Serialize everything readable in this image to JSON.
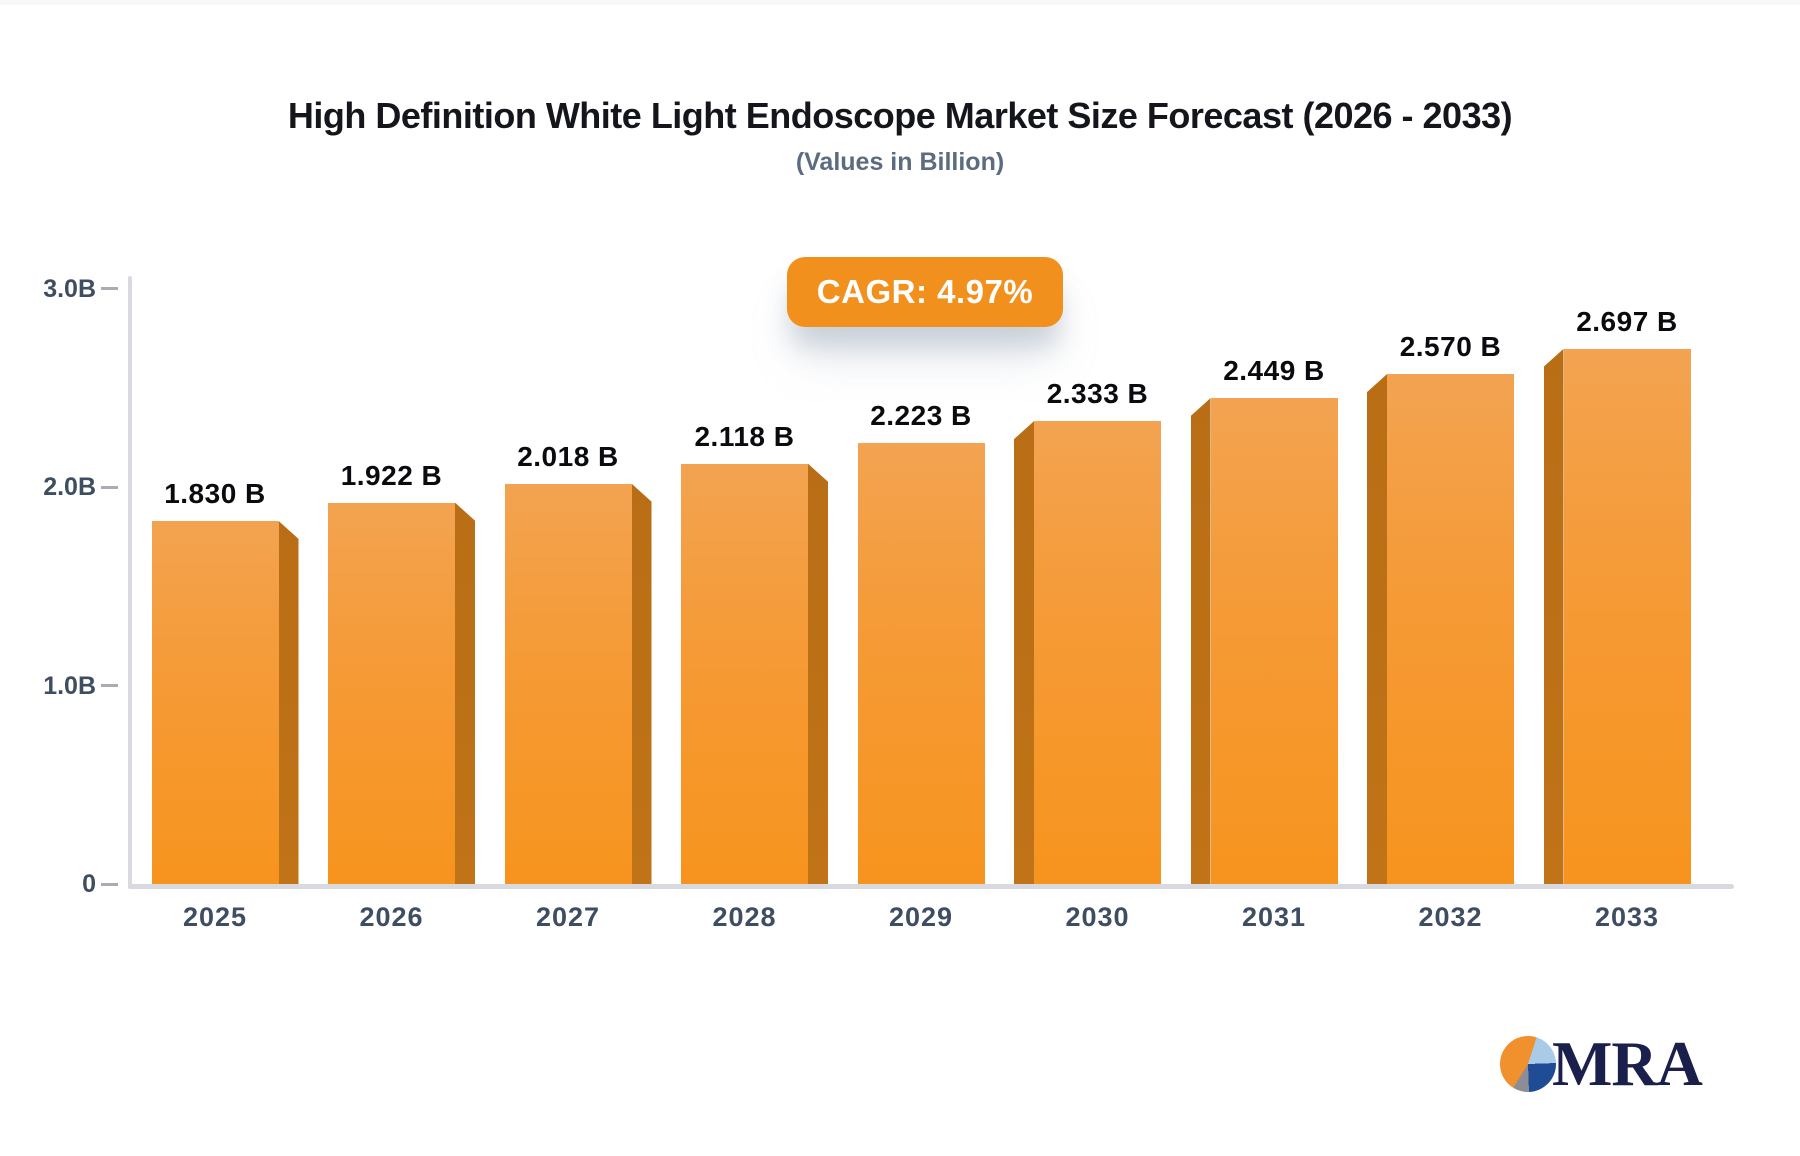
{
  "header": {
    "title": "High Definition White Light Endoscope Market Size Forecast (2026 - 2033)",
    "subtitle": "(Values in Billion)"
  },
  "badge": {
    "label": "CAGR: 4.97%",
    "bg_color": "#F2901E",
    "text_color": "#FFFFFF"
  },
  "chart_data": {
    "type": "bar",
    "title": "High Definition White Light Endoscope Market Size Forecast (2026 - 2033)",
    "subtitle": "(Values in Billion)",
    "xlabel": "",
    "ylabel": "",
    "categories": [
      "2025",
      "2026",
      "2027",
      "2028",
      "2029",
      "2030",
      "2031",
      "2032",
      "2033"
    ],
    "values": [
      1.83,
      1.922,
      2.018,
      2.118,
      2.223,
      2.333,
      2.449,
      2.57,
      2.697
    ],
    "value_labels": [
      "1.830 B",
      "1.922 B",
      "2.018 B",
      "2.118 B",
      "2.223 B",
      "2.333 B",
      "2.449 B",
      "2.570 B",
      "2.697 B"
    ],
    "unit": "Billion",
    "ylim": [
      0,
      3.0
    ],
    "yticks": [
      {
        "value": 3.0,
        "label": "3.0B"
      },
      {
        "value": 2.0,
        "label": "2.0B"
      },
      {
        "value": 1.0,
        "label": "1.0B"
      },
      {
        "value": 0.0,
        "label": "0"
      }
    ],
    "grid": false,
    "legend_position": "none",
    "annotations": [
      "CAGR: 4.97%"
    ],
    "colors": {
      "bar_face_top": "#F3A351",
      "bar_face_bottom": "#F7941E",
      "bar_side": "#BC7017",
      "axis_line": "#D9DADF",
      "tick_text": "#3E4D62",
      "value_text": "#0A0B0E"
    }
  },
  "logo": {
    "text": "MRA",
    "colors": {
      "text": "#1A1F4B",
      "pie_orange": "#F0912D",
      "pie_light_blue": "#A9CBE8",
      "pie_navy": "#1F4C95",
      "pie_gray": "#8D8D95"
    }
  }
}
